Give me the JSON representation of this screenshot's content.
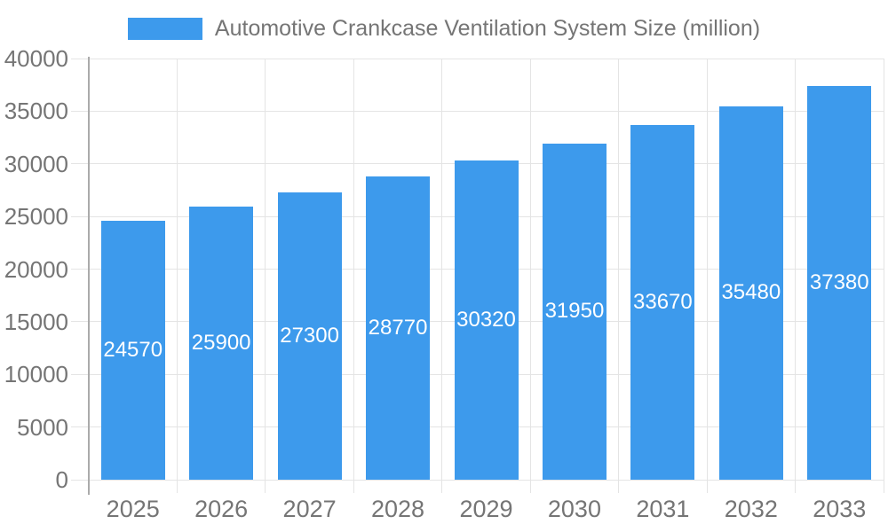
{
  "legend": {
    "label": "Automotive Crankcase Ventilation System Size (million)"
  },
  "chart_data": {
    "type": "bar",
    "title": "Automotive Crankcase Ventilation System Size (million)",
    "categories": [
      "2025",
      "2026",
      "2027",
      "2028",
      "2029",
      "2030",
      "2031",
      "2032",
      "2033"
    ],
    "values": [
      24570,
      25900,
      27300,
      28770,
      30320,
      31950,
      33670,
      35480,
      37380
    ],
    "xlabel": "",
    "ylabel": "",
    "ylim": [
      0,
      40000
    ],
    "ytick_step": 5000,
    "yticks": [
      0,
      5000,
      10000,
      15000,
      20000,
      25000,
      30000,
      35000,
      40000
    ],
    "grid": true,
    "legend_position": "top-center",
    "value_labels": "centered-in-bar",
    "colors": {
      "bar": "#3D9AEC",
      "bar_value_text": "#FFFFFF",
      "axis_text": "#757575",
      "gridline": "#E4E4E4",
      "axis_line": "#ABABAB",
      "background": "#FFFFFF"
    }
  }
}
